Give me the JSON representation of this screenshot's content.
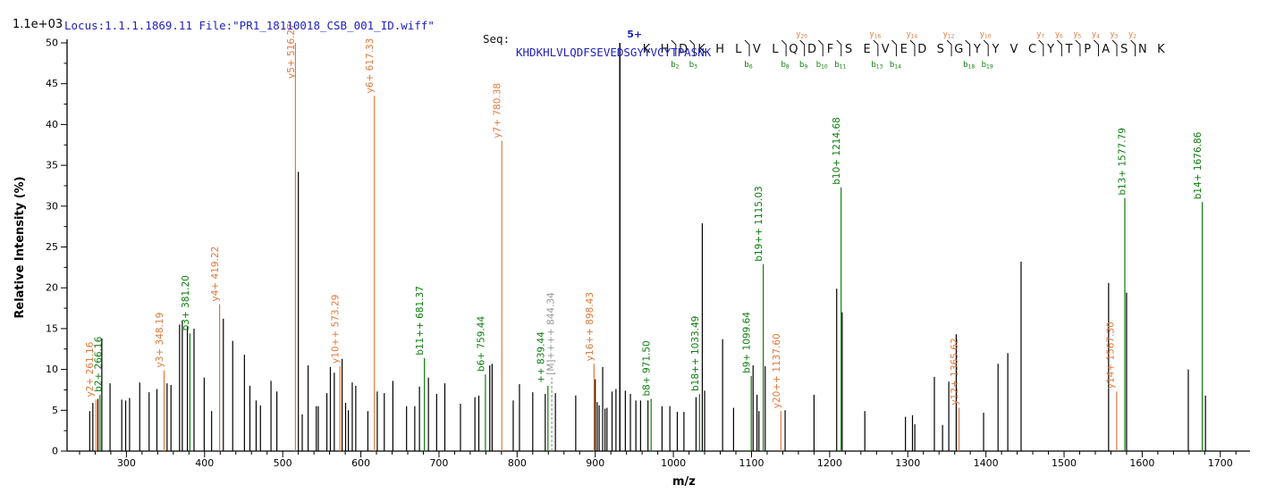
{
  "header": {
    "locus_file": "Locus:1.1.1.1869.11 File:\"PR1_18110018_CSB_001_ID.wiff\"",
    "seq_label": "Seq:",
    "sequence": "KHDKHLVLQDFSEVEDSGYYVCYTPASNK"
  },
  "axes": {
    "x_label": "m/z",
    "y_label": "Relative  Intensity  (%)",
    "y_scale_note": "1.1e+03"
  },
  "colors": {
    "y_ion": "#E0793C",
    "b_ion": "#0A7D0A",
    "precursor_blue": "#2121BD",
    "gray": "#979797",
    "peak_black": "#000000",
    "axis_black": "#000000",
    "seq_text": "#111111"
  },
  "chart_data": {
    "type": "bar",
    "subtype": "ms2-fragment-stick-spectrum",
    "title": "",
    "xlabel": "m/z",
    "ylabel": "Relative  Intensity  (%)",
    "intensity_scale": "1.1e+03",
    "xlim": [
      224,
      1738
    ],
    "ylim": [
      0,
      50
    ],
    "grid": false,
    "x_first_major": 300,
    "x_last_major": 1700,
    "x_major_tick_step": 100,
    "x_minor_tick_step": 20,
    "y_tick_step": 5,
    "y_minor_tick_step": 2.5,
    "precursor": {
      "mz": 931.5,
      "intensity": 50,
      "label": "5+"
    },
    "labeled_peaks": [
      {
        "mz": 261.16,
        "intensity": 6.3,
        "type": "y",
        "label": "y2+ 261.16",
        "dx": -2
      },
      {
        "mz": 266.16,
        "intensity": 6.9,
        "type": "b",
        "label": "b2+ 266.16",
        "dx": 3
      },
      {
        "mz": 348.19,
        "intensity": 9.9,
        "type": "y",
        "label": "y3+ 348.19"
      },
      {
        "mz": 381.2,
        "intensity": 14.4,
        "type": "b",
        "label": "b3+ 381.20"
      },
      {
        "mz": 419.22,
        "intensity": 18.0,
        "type": "y",
        "label": "y4+ 419.22"
      },
      {
        "mz": 516.27,
        "intensity": 50.0,
        "type": "y",
        "label": "y5+ 516.27"
      },
      {
        "mz": 573.29,
        "intensity": 10.4,
        "type": "y",
        "label": "y10++ 573.29"
      },
      {
        "mz": 617.33,
        "intensity": 43.5,
        "type": "y",
        "label": "y6+ 617.33"
      },
      {
        "mz": 681.37,
        "intensity": 11.4,
        "type": "b",
        "label": "b11++ 681.37"
      },
      {
        "mz": 759.44,
        "intensity": 9.4,
        "type": "b",
        "label": "b6+ 759.44"
      },
      {
        "mz": 780.38,
        "intensity": 38.0,
        "type": "y",
        "label": "y7+ 780.38"
      },
      {
        "mz": 839.44,
        "intensity": 8.0,
        "type": "b",
        "label": "++ 839.44",
        "dx": -3
      },
      {
        "mz": 844.34,
        "intensity": 9.0,
        "type": "M",
        "label": "[M]++++ 844.34",
        "dx": 4
      },
      {
        "mz": 898.43,
        "intensity": 10.7,
        "type": "y",
        "label": "y16++ 898.43"
      },
      {
        "mz": 971.5,
        "intensity": 6.4,
        "type": "b",
        "label": "b8+ 971.50"
      },
      {
        "mz": 1033.49,
        "intensity": 7.0,
        "type": "b",
        "label": "b18++ 1033.49"
      },
      {
        "mz": 1099.64,
        "intensity": 9.2,
        "type": "b",
        "label": "b9+ 1099.64"
      },
      {
        "mz": 1115.03,
        "intensity": 22.9,
        "type": "b",
        "label": "b19++ 1115.03"
      },
      {
        "mz": 1137.6,
        "intensity": 4.9,
        "type": "y",
        "label": "y20++ 1137.60"
      },
      {
        "mz": 1214.68,
        "intensity": 32.3,
        "type": "b",
        "label": "b10+ 1214.68"
      },
      {
        "mz": 1365.62,
        "intensity": 5.3,
        "type": "y",
        "label": "y12+ 1365.62"
      },
      {
        "mz": 1567.3,
        "intensity": 7.3,
        "type": "y",
        "label": "y14+ 1567.30",
        "dx": -2
      },
      {
        "mz": 1577.79,
        "intensity": 31.0,
        "type": "b",
        "label": "b13+ 1577.79",
        "dx": 2
      },
      {
        "mz": 1676.86,
        "intensity": 30.5,
        "type": "b",
        "label": "b14+ 1676.86"
      }
    ],
    "unlabeled_peaks": [
      [
        253,
        4.9
      ],
      [
        257,
        5.9
      ],
      [
        263.5,
        6.4
      ],
      [
        268.5,
        13.8
      ],
      [
        279,
        8.3
      ],
      [
        294,
        6.3
      ],
      [
        299,
        6.2
      ],
      [
        304,
        6.5
      ],
      [
        317,
        8.4
      ],
      [
        329,
        7.2
      ],
      [
        339,
        7.6
      ],
      [
        352,
        8.3
      ],
      [
        357,
        8.1
      ],
      [
        368,
        15.5
      ],
      [
        371.5,
        16.0
      ],
      [
        378,
        15.2
      ],
      [
        386.5,
        15.0
      ],
      [
        399.5,
        9.0
      ],
      [
        409,
        4.9
      ],
      [
        424,
        16.2
      ],
      [
        436,
        13.5
      ],
      [
        451,
        11.8
      ],
      [
        458,
        8.0
      ],
      [
        466,
        6.2
      ],
      [
        471.5,
        5.6
      ],
      [
        485,
        8.6
      ],
      [
        492.5,
        7.3
      ],
      [
        520,
        34.2
      ],
      [
        525,
        4.5
      ],
      [
        532.5,
        10.5
      ],
      [
        543,
        5.5
      ],
      [
        545.5,
        5.5
      ],
      [
        556.5,
        7.1
      ],
      [
        561,
        10.3
      ],
      [
        566,
        9.6
      ],
      [
        576,
        11.3
      ],
      [
        580.5,
        5.9
      ],
      [
        584,
        5.0
      ],
      [
        589,
        8.4
      ],
      [
        593.5,
        8.0
      ],
      [
        609,
        4.9
      ],
      [
        621,
        7.3
      ],
      [
        630,
        7.1
      ],
      [
        641,
        8.6
      ],
      [
        658.5,
        5.5
      ],
      [
        669,
        5.5
      ],
      [
        675,
        7.9
      ],
      [
        686.5,
        9.0
      ],
      [
        697,
        7.0
      ],
      [
        707.5,
        8.3
      ],
      [
        727.5,
        5.8
      ],
      [
        746,
        6.6
      ],
      [
        751,
        6.8
      ],
      [
        765,
        10.5
      ],
      [
        768,
        10.7
      ],
      [
        795,
        6.2
      ],
      [
        803,
        8.2
      ],
      [
        820,
        7.2
      ],
      [
        836,
        7.0
      ],
      [
        849,
        7.1
      ],
      [
        875,
        6.8
      ],
      [
        900,
        8.8
      ],
      [
        902.5,
        6.0
      ],
      [
        905,
        5.6
      ],
      [
        909.5,
        10.3
      ],
      [
        912.5,
        5.2
      ],
      [
        915,
        5.3
      ],
      [
        921.5,
        7.3
      ],
      [
        926.5,
        7.6
      ],
      [
        938.5,
        7.4
      ],
      [
        945,
        7.0
      ],
      [
        952,
        6.2
      ],
      [
        958,
        6.2
      ],
      [
        967.5,
        6.2
      ],
      [
        985.5,
        5.5
      ],
      [
        995.5,
        5.5
      ],
      [
        1005,
        4.8
      ],
      [
        1013.5,
        4.8
      ],
      [
        1029,
        6.6
      ],
      [
        1037,
        27.9
      ],
      [
        1040,
        7.4
      ],
      [
        1063,
        13.7
      ],
      [
        1077,
        5.3
      ],
      [
        1102,
        10.5
      ],
      [
        1107,
        6.9
      ],
      [
        1109.5,
        4.9
      ],
      [
        1117.5,
        10.4
      ],
      [
        1143,
        5.0
      ],
      [
        1180,
        6.9
      ],
      [
        1209,
        19.9
      ],
      [
        1216,
        17.0
      ],
      [
        1245,
        4.9
      ],
      [
        1297,
        4.2
      ],
      [
        1306,
        4.4
      ],
      [
        1309,
        3.3
      ],
      [
        1334,
        9.1
      ],
      [
        1344.5,
        3.2
      ],
      [
        1352.5,
        8.5
      ],
      [
        1362,
        14.3
      ],
      [
        1397,
        4.7
      ],
      [
        1415.5,
        10.7
      ],
      [
        1428,
        12.0
      ],
      [
        1445,
        23.2
      ],
      [
        1557,
        20.6
      ],
      [
        1580,
        19.4
      ],
      [
        1659,
        10.0
      ],
      [
        1681,
        6.8
      ]
    ]
  },
  "sequence_annotation": {
    "charge_label": "5+",
    "residues": "KHDKHLVLQDFSEVEDSGYYVCYTPASNK",
    "b_cleavages": [
      2,
      3,
      6,
      8,
      9,
      10,
      11,
      13,
      14,
      18,
      19
    ],
    "y_cleavages": [
      {
        "after": 9,
        "num": 20
      },
      {
        "after": 13,
        "num": 16
      },
      {
        "after": 15,
        "num": 14
      },
      {
        "after": 17,
        "num": 12
      },
      {
        "after": 19,
        "num": 10
      },
      {
        "after": 22,
        "num": 7
      },
      {
        "after": 23,
        "num": 6
      },
      {
        "after": 24,
        "num": 5
      },
      {
        "after": 25,
        "num": 4
      },
      {
        "after": 26,
        "num": 3
      },
      {
        "after": 27,
        "num": 2
      }
    ]
  }
}
